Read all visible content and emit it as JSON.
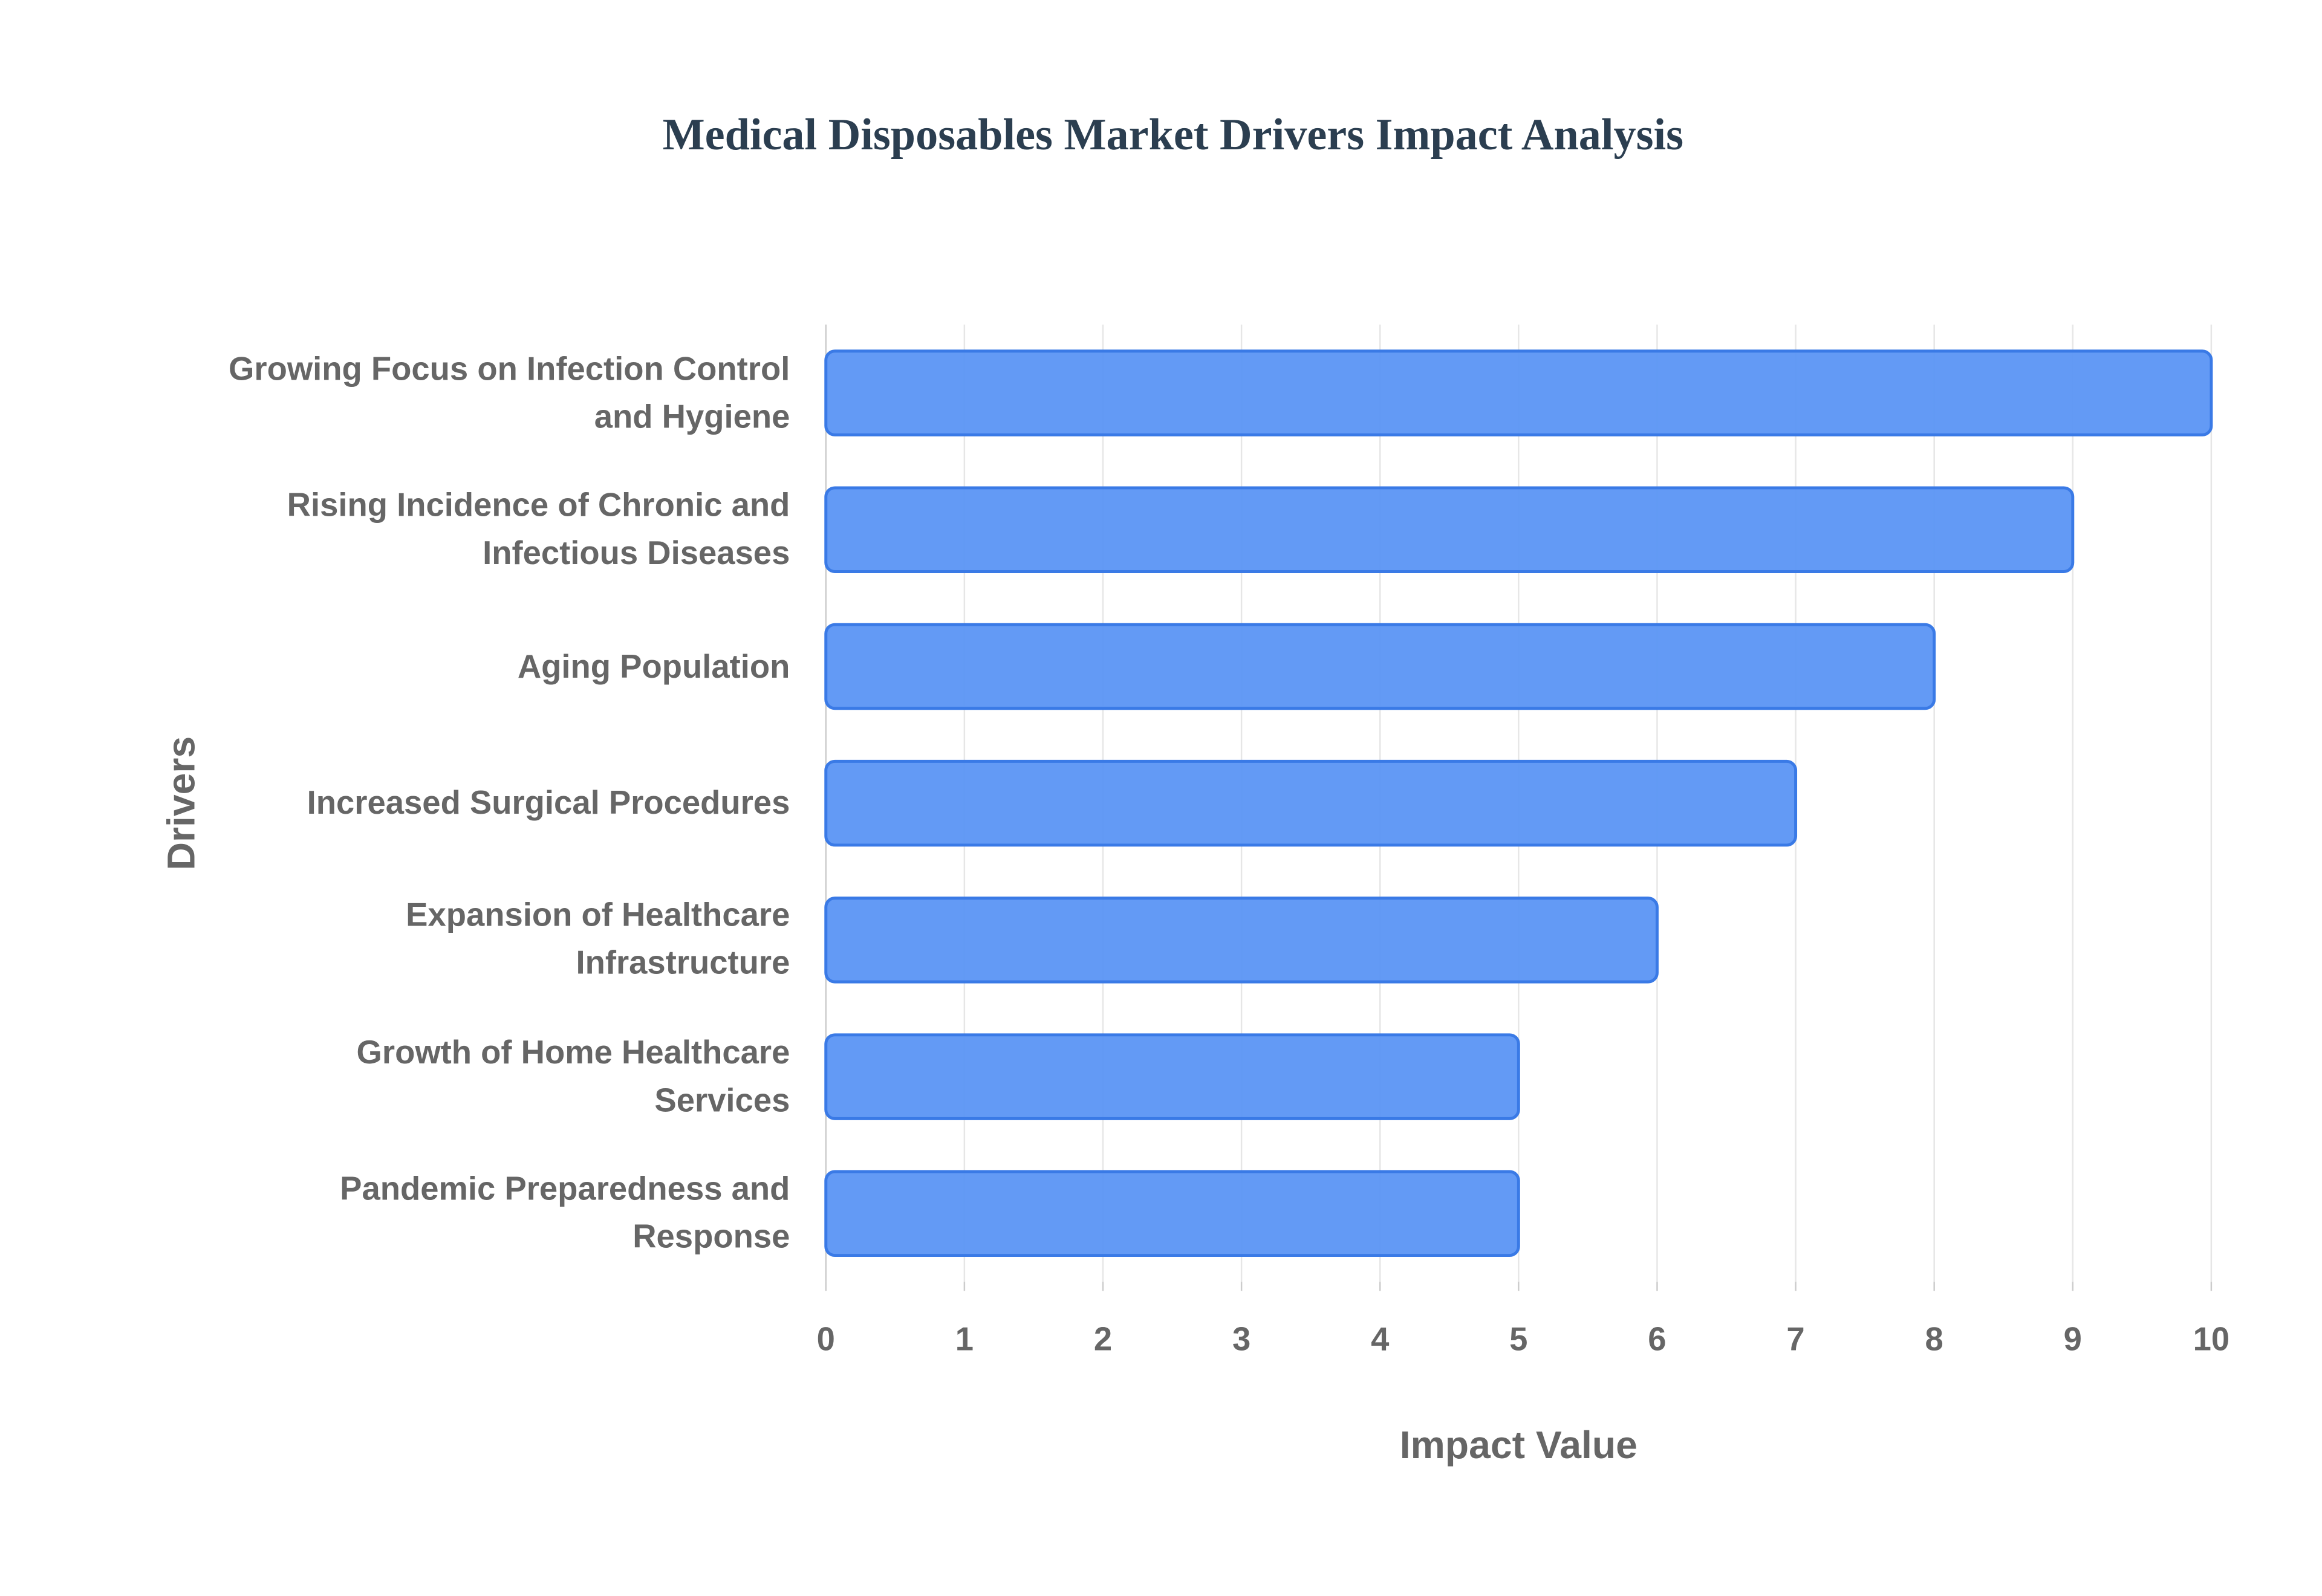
{
  "chart_data": {
    "type": "bar",
    "orientation": "horizontal",
    "title": "Medical Disposables Market Drivers Impact Analysis",
    "x_label": "Impact Value",
    "y_label": "Drivers",
    "categories": [
      "Growing Focus on Infection Control and Hygiene",
      "Rising Incidence of Chronic and Infectious Diseases",
      "Aging Population",
      "Increased Surgical Procedures",
      "Expansion of Healthcare Infrastructure",
      "Growth of Home Healthcare Services",
      "Pandemic Preparedness and Response"
    ],
    "values": [
      10,
      9,
      8,
      7,
      6,
      5,
      5
    ],
    "color": "#5b95f4",
    "border_color": "#3a7ae6",
    "xlim": [
      0,
      10
    ],
    "xticks": [
      0,
      1,
      2,
      3,
      4,
      5,
      6,
      7,
      8,
      9,
      10
    ],
    "grid": true
  }
}
